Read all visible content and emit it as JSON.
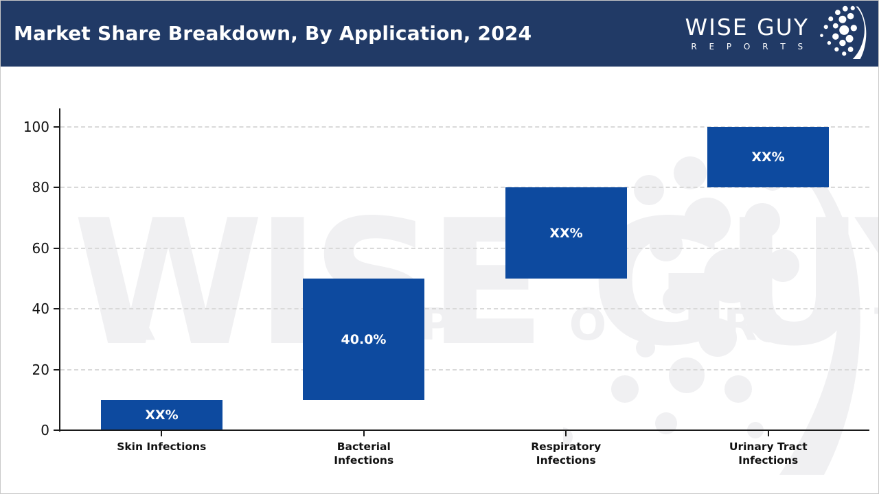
{
  "header": {
    "title": "Market Share Breakdown, By Application, 2024",
    "logo": {
      "name": "WISE GUY",
      "sub": "R E P O R T S"
    }
  },
  "watermark": {
    "main": "WISE GUY",
    "sub": "R E P O R T S"
  },
  "chart_data": {
    "type": "bar",
    "subtype": "waterfall",
    "title": "Market Share Breakdown, By Application, 2024",
    "categories": [
      "Skin Infections",
      "Bacterial\nInfections",
      "Respiratory\nInfections",
      "Urinary Tract\nInfections"
    ],
    "bars": [
      {
        "category": "Skin Infections",
        "start": 0,
        "end": 10,
        "label": "XX%"
      },
      {
        "category": "Bacterial Infections",
        "start": 10,
        "end": 50,
        "label": "40.0%"
      },
      {
        "category": "Respiratory Infections",
        "start": 50,
        "end": 80,
        "label": "XX%"
      },
      {
        "category": "Urinary Tract Infections",
        "start": 80,
        "end": 100,
        "label": "XX%"
      }
    ],
    "ylim": [
      0,
      100
    ],
    "yticks": [
      0,
      20,
      40,
      60,
      80,
      100
    ],
    "xlabel": "",
    "ylabel": "",
    "grid": "horizontal-dashed",
    "legend": "none"
  },
  "colors": {
    "header_bg": "#213a66",
    "bar": "#0d4a9f",
    "grid": "#d9d9d9",
    "axis": "#1a1a1a",
    "watermark": "#f0f0f2"
  }
}
